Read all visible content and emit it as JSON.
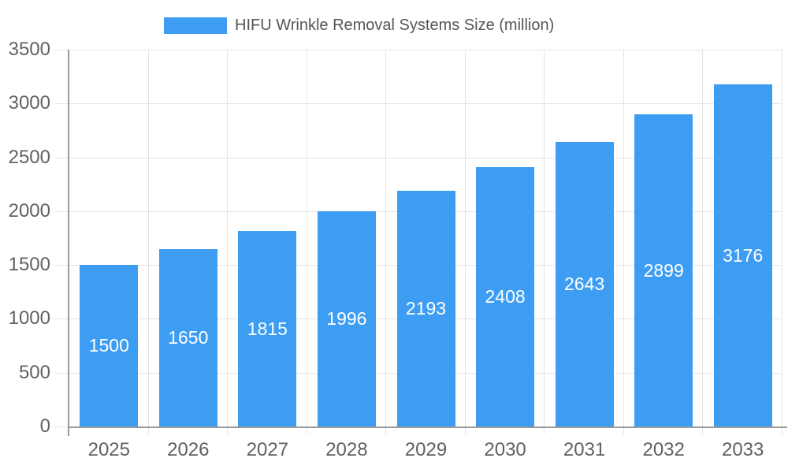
{
  "legend": {
    "label": "HIFU Wrinkle Removal Systems Size (million)"
  },
  "chart_data": {
    "type": "bar",
    "title": "HIFU Wrinkle Removal Systems Size (million)",
    "categories": [
      "2025",
      "2026",
      "2027",
      "2028",
      "2029",
      "2030",
      "2031",
      "2032",
      "2033"
    ],
    "series": [
      {
        "name": "HIFU Wrinkle Removal Systems Size (million)",
        "values": [
          1500,
          1650,
          1815,
          1996,
          2193,
          2408,
          2643,
          2899,
          3176
        ]
      }
    ],
    "xlabel": "",
    "ylabel": "",
    "ylim": [
      0,
      3500
    ],
    "yticks": [
      0,
      500,
      1000,
      1500,
      2000,
      2500,
      3000,
      3500
    ],
    "grid": true,
    "legend_position": "top",
    "value_label_position": "inside-center",
    "colors": {
      "bar": "#3d9df3",
      "grid": "#e4e4e4",
      "axis": "#9a9a9a",
      "tick_label": "#616161",
      "legend_text": "#565656",
      "value_label": "#ffffff",
      "background": "#ffffff"
    }
  }
}
